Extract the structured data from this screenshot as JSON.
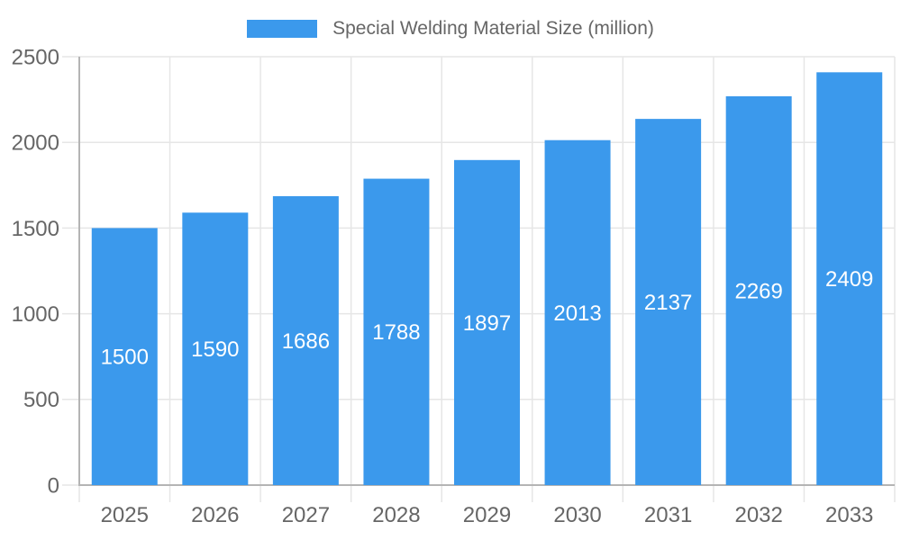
{
  "legend": {
    "label": "Special Welding Material Size (million)"
  },
  "colors": {
    "bar": "#3B99EC",
    "grid": "#E6E6E6",
    "axis_line": "#B4B4B4",
    "tick_text": "#666666",
    "legend_text": "#666666",
    "bar_label_text": "#FFFFFF",
    "background": "#FFFFFF"
  },
  "chart_data": {
    "type": "bar",
    "title": "Special Welding Material Size (million)",
    "categories": [
      "2025",
      "2026",
      "2027",
      "2028",
      "2029",
      "2030",
      "2031",
      "2032",
      "2033"
    ],
    "values": [
      1500,
      1590,
      1686,
      1788,
      1897,
      2013,
      2137,
      2269,
      2409
    ],
    "xlabel": "",
    "ylabel": "",
    "ylim": [
      0,
      2500
    ],
    "yticks": [
      0,
      500,
      1000,
      1500,
      2000,
      2500
    ],
    "grid": true,
    "legend_position": "top",
    "data_labels_position": "inside-center"
  }
}
